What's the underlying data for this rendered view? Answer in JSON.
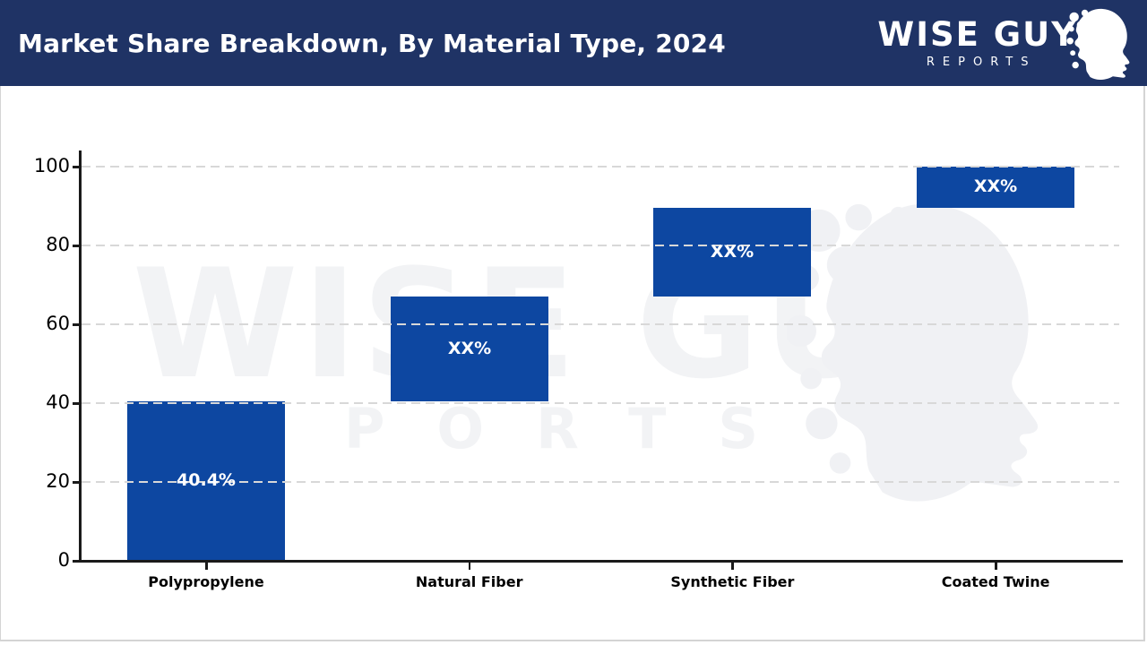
{
  "header": {
    "title": "Market Share Breakdown, By Material Type, 2024",
    "logo": {
      "line1": "WISE GUY",
      "line2": "REPORTS"
    }
  },
  "watermark": {
    "line1": "WISE GUY",
    "line2": "PORTS"
  },
  "chart_data": {
    "type": "bar",
    "subtype": "waterfall",
    "title": "Market Share Breakdown, By Material Type, 2024",
    "categories": [
      "Polypropylene",
      "Natural Fiber",
      "Synthetic Fiber",
      "Coated Twine"
    ],
    "segments": [
      {
        "category": "Polypropylene",
        "start": 0,
        "end": 40.4,
        "label": "40.4%"
      },
      {
        "category": "Natural Fiber",
        "start": 40.4,
        "end": 67,
        "label": "XX%"
      },
      {
        "category": "Synthetic Fiber",
        "start": 67,
        "end": 89.5,
        "label": "XX%"
      },
      {
        "category": "Coated Twine",
        "start": 89.5,
        "end": 100,
        "label": "XX%"
      }
    ],
    "y_ticks": [
      0,
      20,
      40,
      60,
      80,
      100
    ],
    "ylim": [
      0,
      104
    ],
    "xlabel": "",
    "ylabel": "",
    "grid": "horizontal-dashed",
    "legend": "none",
    "bar_color": "#0d47a1",
    "bar_label_color": "#ffffff"
  },
  "colors": {
    "header_bg": "#1f3365",
    "bar": "#0d47a1",
    "gridline": "#d8d8d8",
    "axis": "#1a1a1a",
    "watermark": "#f2f3f5",
    "frame_line": "#d4d4d4"
  }
}
